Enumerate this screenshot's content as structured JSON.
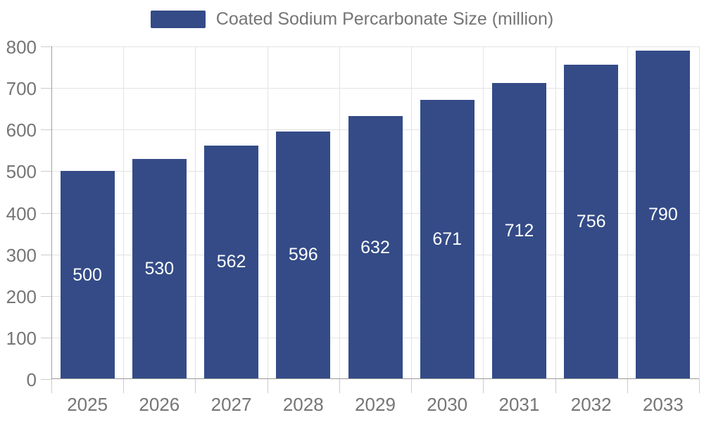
{
  "chart_data": {
    "type": "bar",
    "title": "Coated Sodium Percarbonate Size (million)",
    "categories": [
      "2025",
      "2026",
      "2027",
      "2028",
      "2029",
      "2030",
      "2031",
      "2032",
      "2033"
    ],
    "series": [
      {
        "name": "Coated Sodium Percarbonate Size (million)",
        "values": [
          500,
          530,
          562,
          596,
          632,
          671,
          712,
          756,
          790
        ]
      }
    ],
    "xlabel": "",
    "ylabel": "",
    "ylim": [
      0,
      800
    ],
    "y_ticks": [
      0,
      100,
      200,
      300,
      400,
      500,
      600,
      700,
      800
    ],
    "grid": true,
    "legend_position": "top",
    "colors": {
      "bar": "#344b87",
      "value_label": "#ffffff",
      "axis_text": "#757575",
      "grid_line": "#e3e3e3",
      "axis_line": "#999999",
      "tick_line": "#cccccc"
    }
  }
}
